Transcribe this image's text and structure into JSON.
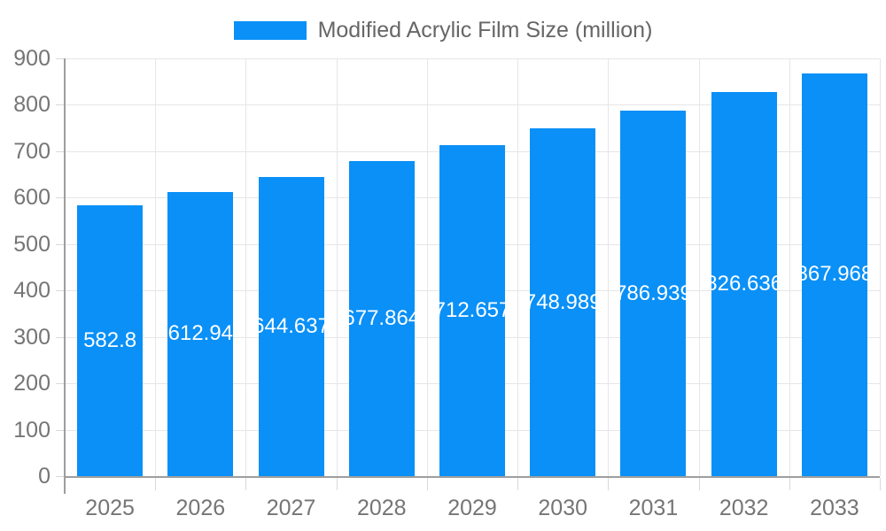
{
  "chart_data": {
    "type": "bar",
    "title": "Modified Acrylic Film Size (million)",
    "legend": {
      "label": "Modified Acrylic Film Size (million)",
      "position": "top"
    },
    "categories": [
      "2025",
      "2026",
      "2027",
      "2028",
      "2029",
      "2030",
      "2031",
      "2032",
      "2033"
    ],
    "series": [
      {
        "name": "Modified Acrylic Film Size (million)",
        "values": [
          582.8,
          612.94,
          644.637,
          677.864,
          712.657,
          748.989,
          786.939,
          826.636,
          867.968
        ],
        "value_labels": [
          "582.8",
          "612.94",
          "644.637",
          "677.864",
          "712.657",
          "748.989",
          "786.939",
          "826.636",
          "867.968"
        ]
      }
    ],
    "xlabel": "",
    "ylabel": "",
    "ylim": [
      0,
      900
    ],
    "ytick_step": 100,
    "ytick_labels": [
      "0",
      "100",
      "200",
      "300",
      "400",
      "500",
      "600",
      "700",
      "800",
      "900"
    ],
    "grid": true,
    "legend_position": "top",
    "value_labels_inside_bars": true
  },
  "colors": {
    "bar": "#0a90f7",
    "grid": "#e6e6e6",
    "tick_dash": "#d9d9d9",
    "axis": "#9e9e9e",
    "axis_text": "#757575",
    "legend_text": "#666666",
    "bar_label_text": "#ffffff",
    "background": "#ffffff"
  }
}
